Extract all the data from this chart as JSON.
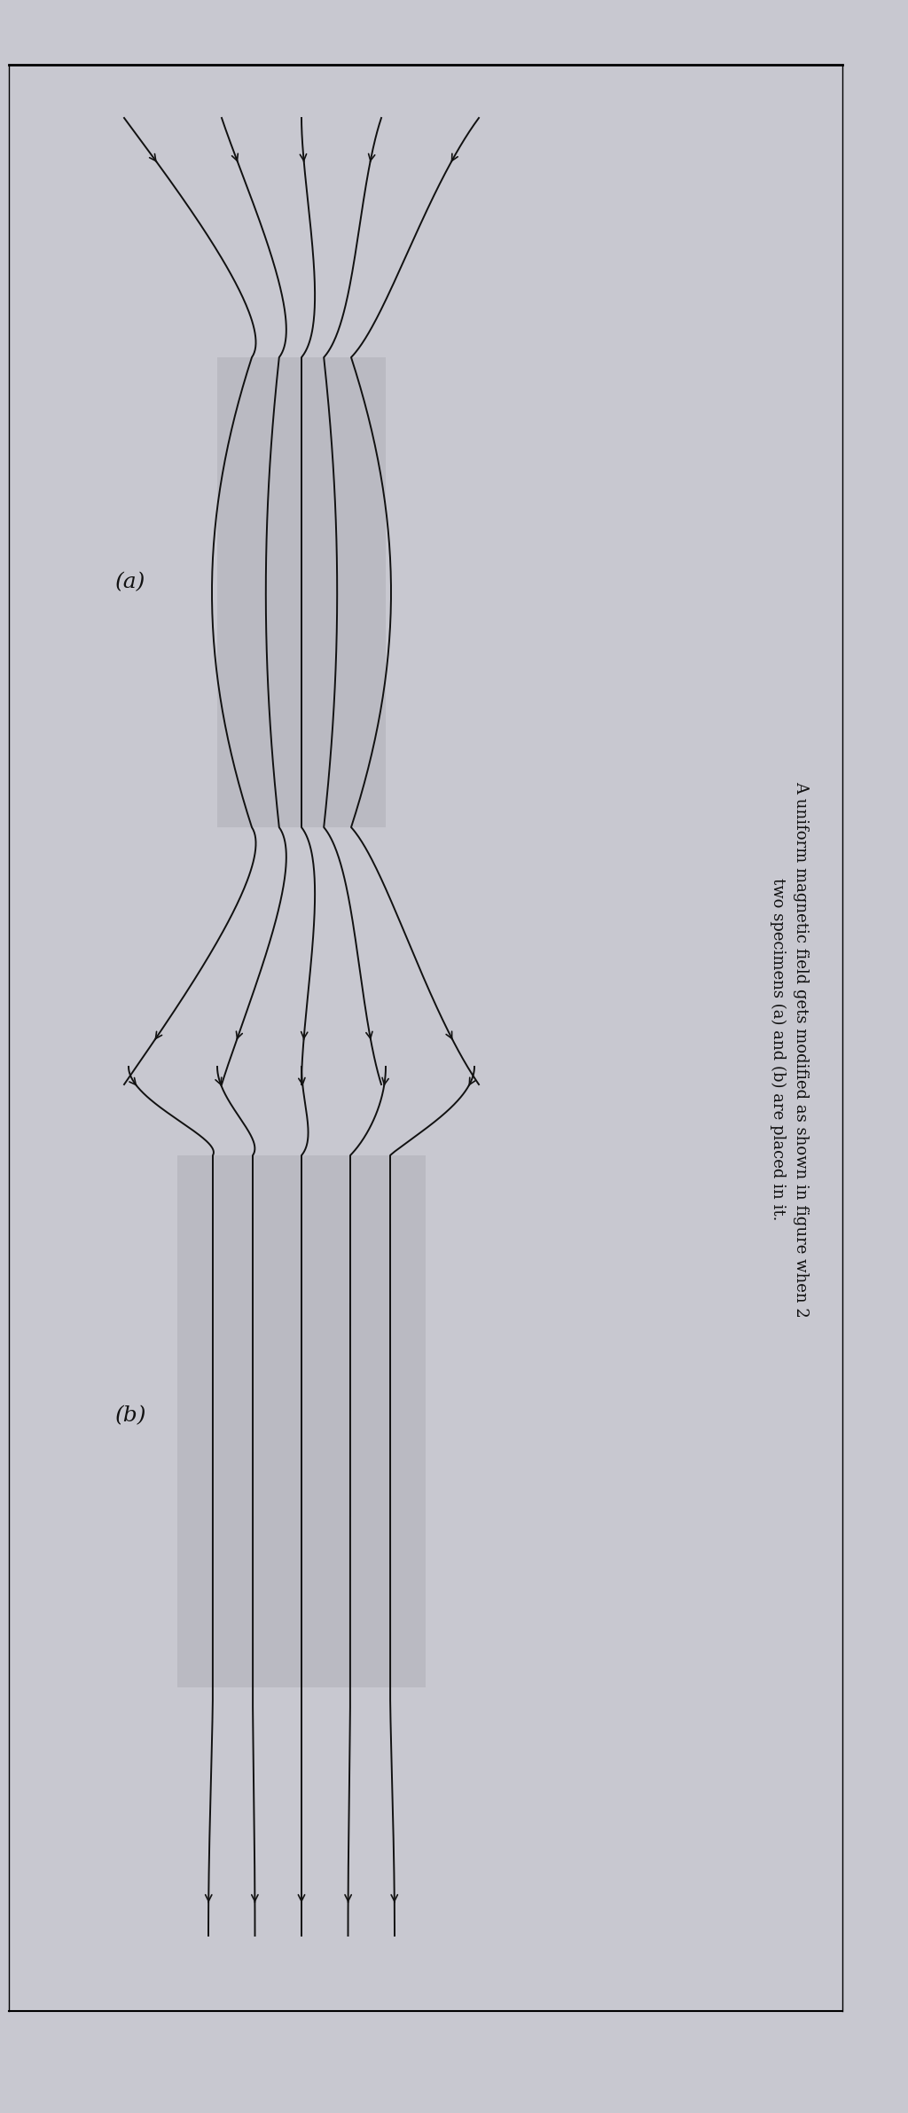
{
  "bg_color": "#c8c8d0",
  "specimen_fill": "#b8b8c0",
  "line_color": "#111111",
  "text_color": "#111111",
  "label_a": "(a)",
  "label_b": "(b)",
  "text_line1": "A uniform magnetic field gets modified as shown in figure when 2",
  "text_line2": "two specimens (a) and (b) are placed in it.",
  "fig_width": 10.24,
  "fig_height": 23.83
}
